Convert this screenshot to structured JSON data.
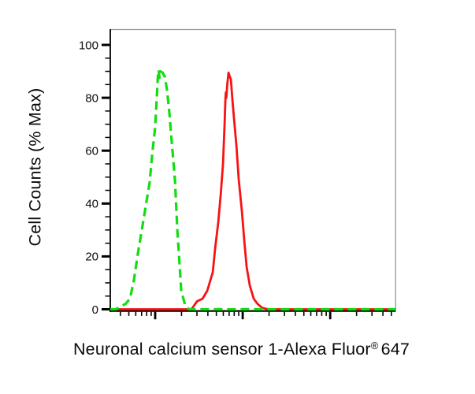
{
  "figure": {
    "background_color": "#ffffff",
    "axis_color": "#000000",
    "frame_light_color": "#979797"
  },
  "chart_data": {
    "type": "line",
    "subtype": "flow-cytometry-histogram-overlay",
    "title": "",
    "ylabel": "Cell Counts (% Max)",
    "xlabel": "Neuronal calcium sensor 1-Alexa Fluor® 647",
    "xlabel_parts": {
      "main": "Neuronal calcium sensor 1-Alexa Fluor",
      "sup": "®",
      "tail": "647"
    },
    "x_scale": "log",
    "x_domain_log10": [
      0.487,
      3.748
    ],
    "x_major_ticks_log10": [
      1,
      2,
      3
    ],
    "x_tick_labels_visible": false,
    "ylim": [
      0,
      100
    ],
    "yticks": [
      0,
      20,
      40,
      60,
      80,
      100
    ],
    "y_minor_tick_step": 5,
    "grid": false,
    "legend_position": "none",
    "series": [
      {
        "id": "red-solid",
        "label": "red solid histogram (right peak)",
        "color": "#f81212",
        "line_style": "solid",
        "peak": {
          "x_log10": 1.84,
          "y_percent_max": 89.5
        },
        "points": [
          [
            0.487,
            0
          ],
          [
            1.0,
            0
          ],
          [
            1.3,
            0
          ],
          [
            1.415,
            0
          ],
          [
            1.478,
            3
          ],
          [
            1.541,
            4
          ],
          [
            1.595,
            7
          ],
          [
            1.658,
            14
          ],
          [
            1.685,
            23
          ],
          [
            1.721,
            33
          ],
          [
            1.748,
            43
          ],
          [
            1.775,
            55
          ],
          [
            1.793,
            70
          ],
          [
            1.802,
            79
          ],
          [
            1.807,
            82
          ],
          [
            1.813,
            80
          ],
          [
            1.824,
            85
          ],
          [
            1.838,
            89.5
          ],
          [
            1.852,
            88
          ],
          [
            1.865,
            87
          ],
          [
            1.883,
            79
          ],
          [
            1.901,
            72
          ],
          [
            1.928,
            62
          ],
          [
            1.955,
            49
          ],
          [
            1.991,
            37
          ],
          [
            2.018,
            26
          ],
          [
            2.045,
            16
          ],
          [
            2.081,
            9
          ],
          [
            2.126,
            4
          ],
          [
            2.171,
            2
          ],
          [
            2.225,
            0.5
          ],
          [
            2.29,
            0
          ],
          [
            2.8,
            0
          ],
          [
            3.3,
            0
          ],
          [
            3.748,
            0
          ]
        ]
      },
      {
        "id": "green-dashed",
        "label": "green dashed histogram (left peak)",
        "color": "#12dd12",
        "line_style": "dashed",
        "peak": {
          "x_log10": 1.04,
          "y_percent_max": 90.5
        },
        "points": [
          [
            0.487,
            0
          ],
          [
            0.55,
            0
          ],
          [
            0.6,
            1
          ],
          [
            0.66,
            2
          ],
          [
            0.712,
            4
          ],
          [
            0.757,
            11
          ],
          [
            0.802,
            21
          ],
          [
            0.847,
            30
          ],
          [
            0.892,
            39
          ],
          [
            0.937,
            48
          ],
          [
            0.964,
            58
          ],
          [
            1.0,
            69
          ],
          [
            1.018,
            80
          ],
          [
            1.031,
            88
          ],
          [
            1.04,
            90.5
          ],
          [
            1.05,
            87.5
          ],
          [
            1.062,
            90
          ],
          [
            1.085,
            89.5
          ],
          [
            1.11,
            88
          ],
          [
            1.135,
            83
          ],
          [
            1.163,
            74
          ],
          [
            1.19,
            63
          ],
          [
            1.226,
            49
          ],
          [
            1.253,
            30
          ],
          [
            1.271,
            21
          ],
          [
            1.298,
            7
          ],
          [
            1.343,
            1.5
          ],
          [
            1.388,
            0
          ],
          [
            1.5,
            0
          ],
          [
            1.9,
            0
          ],
          [
            2.3,
            0
          ],
          [
            2.7,
            0
          ],
          [
            3.1,
            0
          ],
          [
            3.5,
            0
          ],
          [
            3.748,
            0
          ]
        ]
      }
    ]
  }
}
